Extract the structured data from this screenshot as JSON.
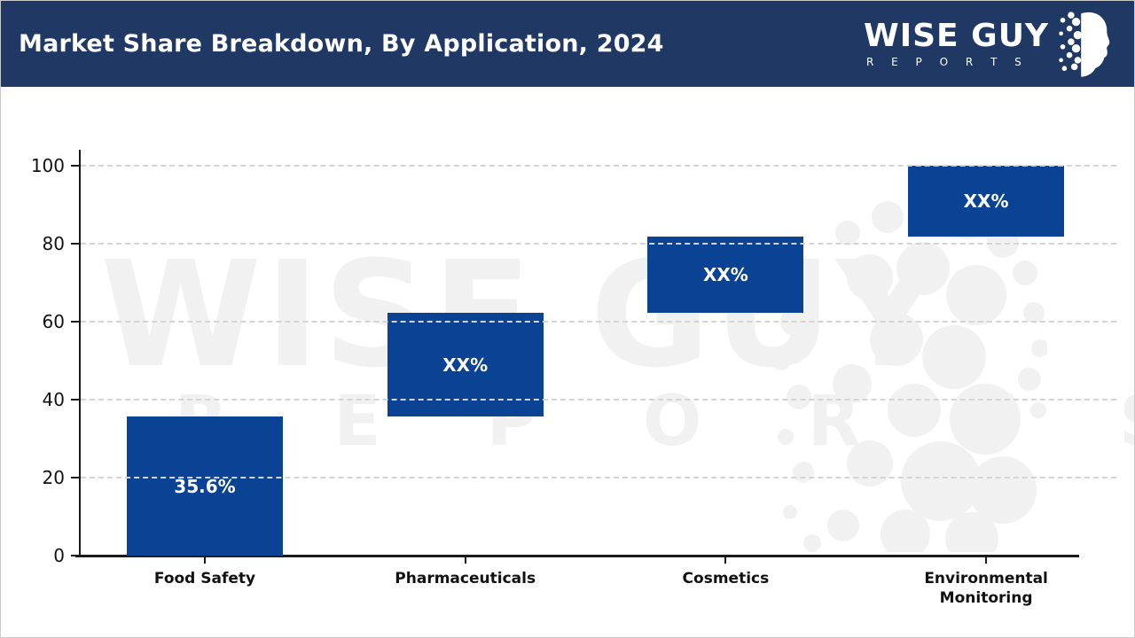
{
  "header": {
    "title": "Market Share Breakdown, By Application, 2024",
    "logo_line1": "WISE GUY",
    "logo_line2": "R E P O R T S"
  },
  "watermark": {
    "line1": "WISE GUY",
    "line2": "R E P O R T S"
  },
  "chart_data": {
    "type": "bar",
    "subtype": "waterfall",
    "title": "Market Share Breakdown, By Application, 2024",
    "categories": [
      "Food Safety",
      "Pharmaceuticals",
      "Cosmetics",
      "Environmental Monitoring"
    ],
    "bars": [
      {
        "category": "Food Safety",
        "start": 0,
        "end": 35.6,
        "value": 35.6,
        "label": "35.6%"
      },
      {
        "category": "Pharmaceuticals",
        "start": 35.6,
        "end": 62.3,
        "value": 26.7,
        "label": "XX%"
      },
      {
        "category": "Cosmetics",
        "start": 62.3,
        "end": 81.8,
        "value": 19.5,
        "label": "XX%"
      },
      {
        "category": "Environmental Monitoring",
        "start": 81.8,
        "end": 100,
        "value": 18.2,
        "label": "XX%"
      }
    ],
    "xlabel": "",
    "ylabel": "",
    "ylim": [
      0,
      100
    ],
    "yticks": [
      0,
      20,
      40,
      60,
      80,
      100
    ],
    "grid": "horizontal dashed gridlines drawn over bars",
    "legend": "none",
    "bar_color": "#0b4394",
    "bar_label_color": "#ffffff",
    "axis_color": "#1a1a1a",
    "grid_color": "#d4d4d4"
  },
  "colors": {
    "header_bg": "#1f3864",
    "background": "#ffffff",
    "watermark": "#f1f1f1",
    "text": "#111111"
  }
}
